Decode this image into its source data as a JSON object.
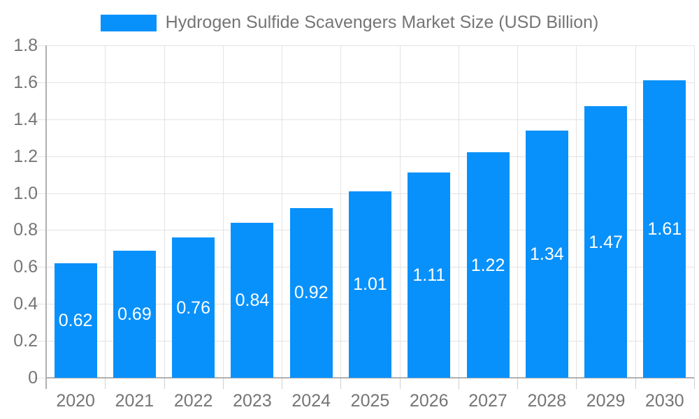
{
  "chart_data": {
    "type": "bar",
    "title": "Hydrogen Sulfide Scavengers Market Size (USD Billion)",
    "legend": {
      "label": "Hydrogen Sulfide Scavengers Market Size (USD Billion)",
      "position": "top-center"
    },
    "categories": [
      "2020",
      "2021",
      "2022",
      "2023",
      "2024",
      "2025",
      "2026",
      "2027",
      "2028",
      "2029",
      "2030"
    ],
    "values": [
      0.62,
      0.69,
      0.76,
      0.84,
      0.92,
      1.01,
      1.11,
      1.22,
      1.34,
      1.47,
      1.61
    ],
    "value_labels": [
      "0.62",
      "0.69",
      "0.76",
      "0.84",
      "0.92",
      "1.01",
      "1.11",
      "1.22",
      "1.34",
      "1.47",
      "1.61"
    ],
    "xlabel": "",
    "ylabel": "",
    "ylim": [
      0,
      1.8
    ],
    "yticks": [
      "0",
      "0.2",
      "0.4",
      "0.6",
      "0.8",
      "1.0",
      "1.2",
      "1.4",
      "1.6",
      "1.8"
    ],
    "grid": {
      "horizontal": true,
      "vertical": true
    },
    "colors": {
      "bar": "#0991fb",
      "value_label": "#ffffff",
      "axis_text": "#757575",
      "gridline": "#e3e3e3",
      "axis_line": "#b0b0b0",
      "tick": "#cfcfcf",
      "background": "#ffffff"
    }
  }
}
